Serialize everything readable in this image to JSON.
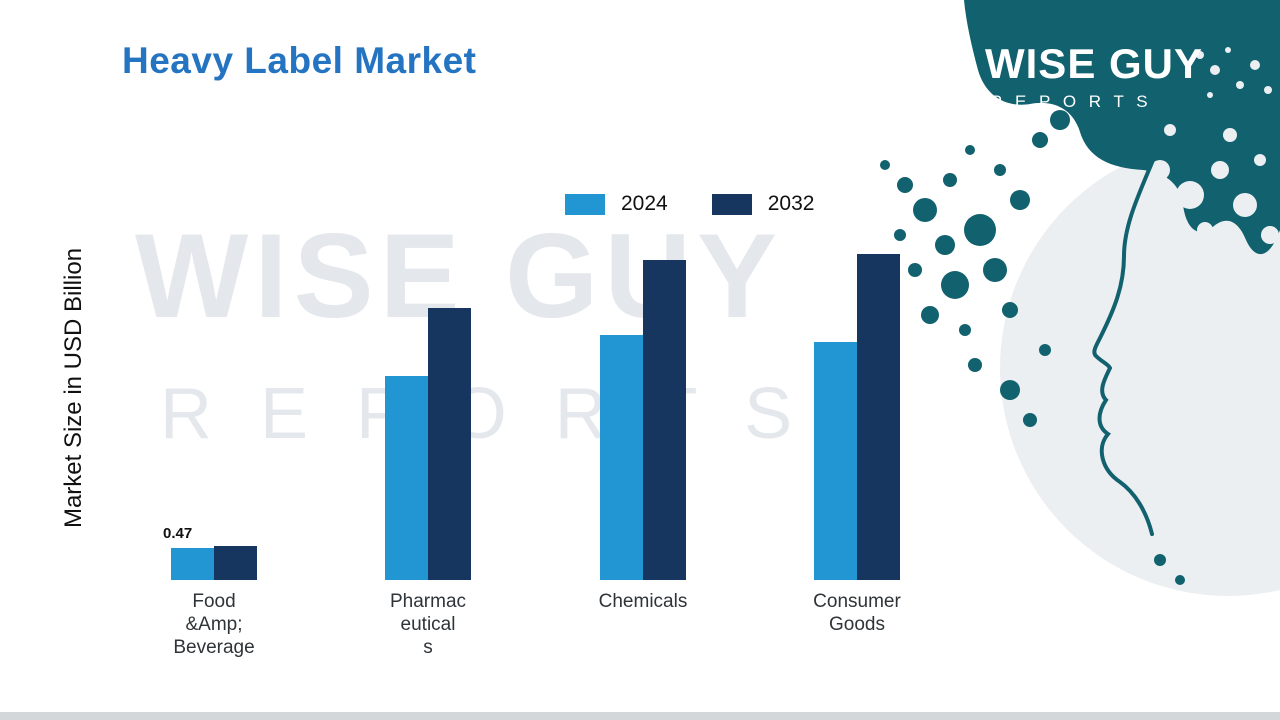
{
  "title": "Heavy Label Market",
  "y_axis_label": "Market Size in USD Billion",
  "watermark": {
    "line1": "WISE GUY",
    "line2": "R E P O R T S"
  },
  "logo": {
    "line1": "WISE GUY",
    "line2": "R E P O R T S"
  },
  "colors": {
    "title_blue": "#2474C2",
    "series_2024": "#2196D3",
    "series_2032": "#16365F",
    "logo_teal": "#11616E",
    "watermark_gray": "#E4E8EC",
    "face_circle_gray": "#ECEFF2",
    "bottom_strip_gray": "#D3D7DA"
  },
  "chart_data": {
    "type": "bar",
    "title": "Heavy Label Market",
    "ylabel": "Market Size in USD Billion",
    "categories": [
      "Food &Amp; Beverage",
      "Pharmaceuticals",
      "Chemicals",
      "Consumer Goods"
    ],
    "category_display": [
      "Food\n&Amp;\nBeverage",
      "Pharmac\neutical\ns",
      "Chemicals",
      "Consumer\nGoods"
    ],
    "series": [
      {
        "name": "2024",
        "color": "#2196D3",
        "values": [
          0.47,
          3.0,
          3.6,
          3.5
        ]
      },
      {
        "name": "2032",
        "color": "#16365F",
        "values": [
          0.5,
          4.0,
          4.7,
          4.8
        ]
      }
    ],
    "value_labels": [
      {
        "category_index": 0,
        "series_index": 0,
        "text": "0.47"
      }
    ],
    "ylim": [
      0,
      5.2
    ],
    "grid": false,
    "legend_position": "top-center"
  }
}
